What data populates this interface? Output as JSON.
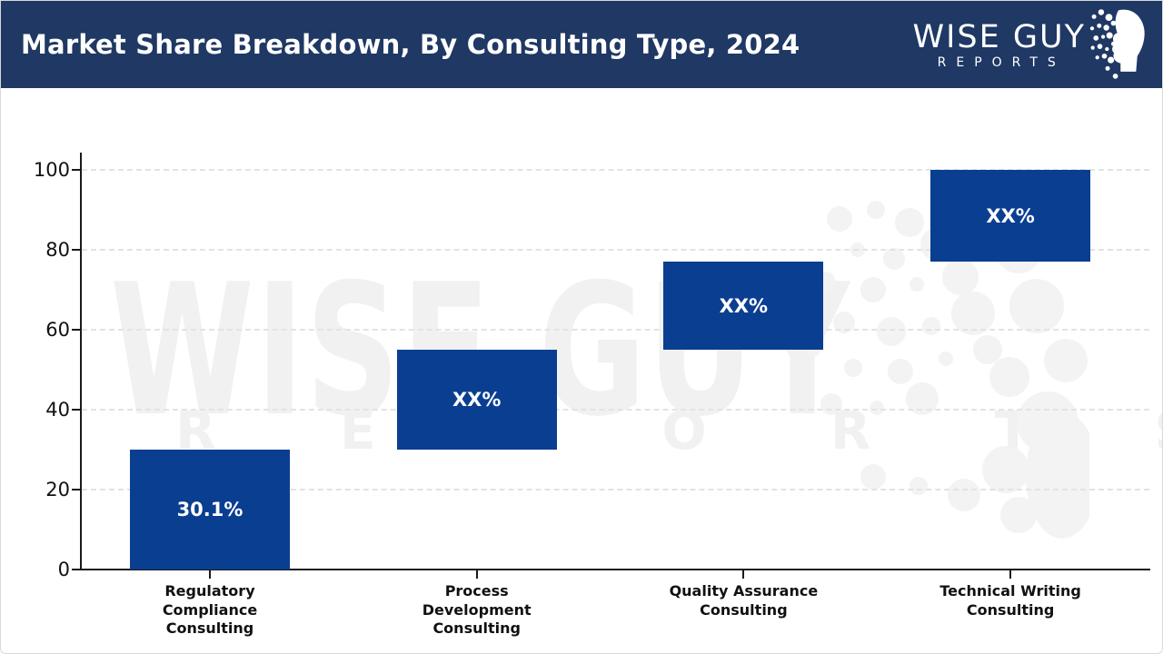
{
  "header": {
    "title": "Market Share Breakdown, By Consulting Type, 2024",
    "bg_color": "#1f3864",
    "logo": {
      "line1": "WISE GUY",
      "line2": "REPORTS"
    }
  },
  "watermark": {
    "line1": "WISE GUY",
    "line2": "R E P O R T S"
  },
  "chart_data": {
    "type": "bar",
    "variant": "waterfall",
    "title": "Market Share Breakdown, By Consulting Type, 2024",
    "categories": [
      "Regulatory Compliance Consulting",
      "Process Development Consulting",
      "Quality Assurance Consulting",
      "Technical Writing Consulting"
    ],
    "segments": [
      {
        "category": "Regulatory Compliance Consulting",
        "lines": [
          "Regulatory",
          "Compliance",
          "Consulting"
        ],
        "start": 0,
        "end": 30.1,
        "value": 30.1,
        "value_label": "30.1%"
      },
      {
        "category": "Process Development Consulting",
        "lines": [
          "Process",
          "Development",
          "Consulting"
        ],
        "start": 30.1,
        "end": 55,
        "value": 24.9,
        "value_label": "XX%"
      },
      {
        "category": "Quality Assurance Consulting",
        "lines": [
          "Quality Assurance",
          "Consulting"
        ],
        "start": 55,
        "end": 77,
        "value": 22,
        "value_label": "XX%"
      },
      {
        "category": "Technical Writing Consulting",
        "lines": [
          "Technical Writing",
          "Consulting"
        ],
        "start": 77,
        "end": 100,
        "value": 23,
        "value_label": "XX%"
      }
    ],
    "yticks": [
      0,
      20,
      40,
      60,
      80,
      100
    ],
    "ylim": [
      0,
      104
    ],
    "xlabel": "",
    "ylabel": "",
    "grid": "horizontal-dashed",
    "legend": "none",
    "bar_color": "#0a3e91",
    "axis_color": "#1a1a1a",
    "grid_color": "#e3e3e3",
    "label_color": "#ffffff"
  }
}
